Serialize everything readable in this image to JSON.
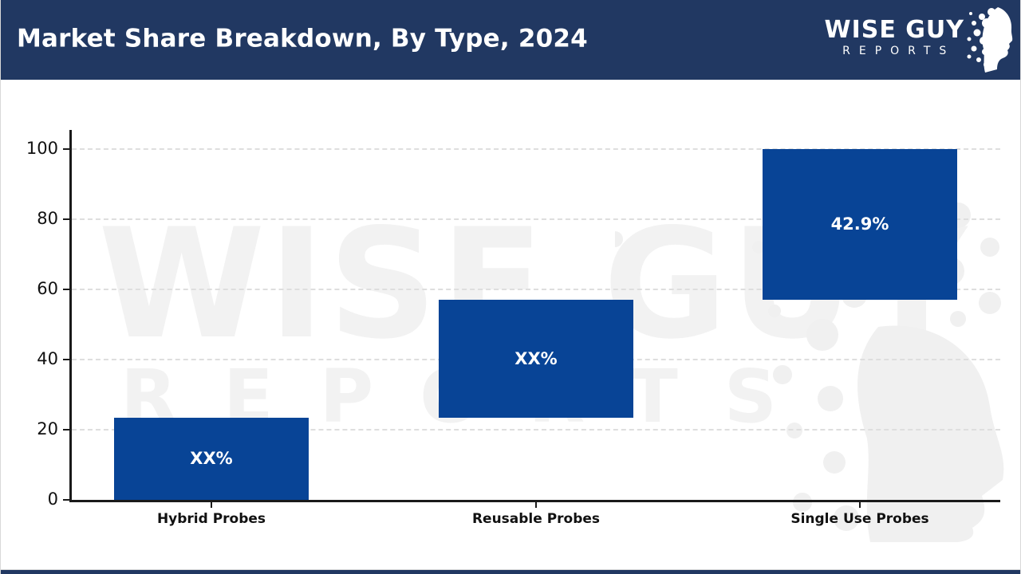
{
  "header": {
    "title": "Market Share Breakdown, By Type, 2024",
    "logo": {
      "line1": "WISE GUY",
      "line2": "REPORTS"
    }
  },
  "watermark": {
    "line1": "WISE GUY",
    "line2": "REPORTS"
  },
  "colors": {
    "header_bg": "#213862",
    "bar_fill": "#084496",
    "bar_label_text": "#ffffff",
    "grid_line": "#dedede",
    "axis_line": "#1a1a1a",
    "watermark_text": "#f2f2f2"
  },
  "chart_data": {
    "type": "bar",
    "subtype": "floating-waterfall",
    "title": "Market Share Breakdown, By Type, 2024",
    "xlabel": "",
    "ylabel": "",
    "categories": [
      "Hybrid Probes",
      "Reusable Probes",
      "Single Use Probes"
    ],
    "segments": [
      {
        "category": "Hybrid Probes",
        "start": 0,
        "end": 23.5,
        "value": 23.5,
        "label": "XX%"
      },
      {
        "category": "Reusable Probes",
        "start": 23.5,
        "end": 57.1,
        "value": 33.6,
        "label": "XX%"
      },
      {
        "category": "Single Use Probes",
        "start": 57.1,
        "end": 100,
        "value": 42.9,
        "label": "42.9%"
      }
    ],
    "yticks": [
      0,
      20,
      40,
      60,
      80,
      100
    ],
    "ylim": [
      0,
      105
    ],
    "grid": "horizontal-dashed",
    "legend": null
  }
}
